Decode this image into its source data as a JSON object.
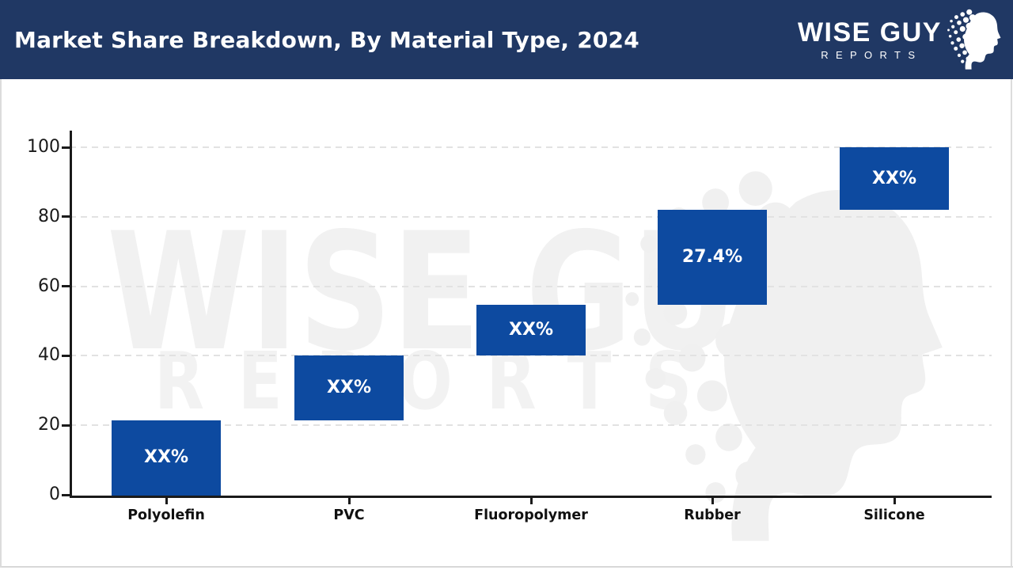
{
  "header": {
    "title": "Market Share Breakdown, By Material Type, 2024",
    "logo_line1": "WISE GUY",
    "logo_line2": "REPORTS"
  },
  "watermark": {
    "line1": "WISE GUY",
    "line2": "REPORTS"
  },
  "colors": {
    "header_bg": "#203864",
    "bar": "#0d4aa0",
    "grid": "#e2e2e2",
    "axis": "#1a1a1a",
    "watermark": "#f1f1f1"
  },
  "chart_data": {
    "type": "bar",
    "variant": "waterfall-floating-bars",
    "title": "Market Share Breakdown, By Material Type, 2024",
    "categories": [
      "Polyolefin",
      "PVC",
      "Fluoropolymer",
      "Rubber",
      "Silicone"
    ],
    "bars": [
      {
        "category": "Polyolefin",
        "start": 0,
        "end": 21.5,
        "value_label": "XX%"
      },
      {
        "category": "PVC",
        "start": 21.5,
        "end": 40,
        "value_label": "XX%"
      },
      {
        "category": "Fluoropolymer",
        "start": 40,
        "end": 54.6,
        "value_label": "XX%"
      },
      {
        "category": "Rubber",
        "start": 54.6,
        "end": 82,
        "value_label": "27.4%"
      },
      {
        "category": "Silicone",
        "start": 82,
        "end": 100,
        "value_label": "XX%"
      }
    ],
    "xlabel": "",
    "ylabel": "",
    "ylim": [
      0,
      100
    ],
    "yticks": [
      0,
      20,
      40,
      60,
      80,
      100
    ],
    "grid": "horizontal-dashed",
    "legend": "none",
    "bar_color": "#0d4aa0"
  }
}
